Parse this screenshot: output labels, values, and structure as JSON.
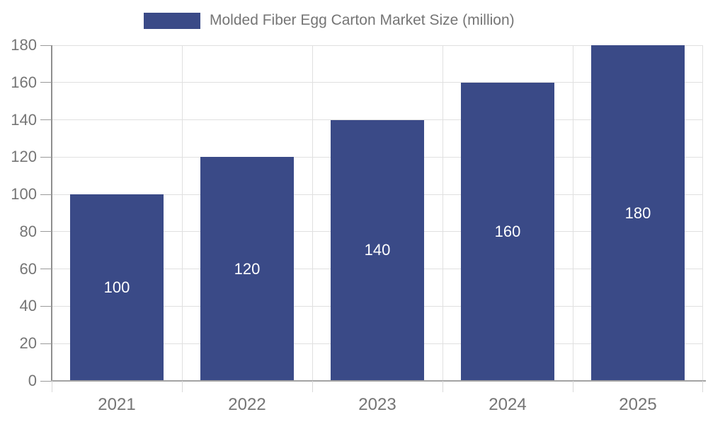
{
  "chart_data": {
    "type": "bar",
    "title": "",
    "series_name": "Molded Fiber Egg Carton Market Size (million)",
    "categories": [
      "2021",
      "2022",
      "2023",
      "2024",
      "2025"
    ],
    "values": [
      100,
      120,
      140,
      160,
      180
    ],
    "ylim": [
      0,
      180
    ],
    "ytick_step": 20,
    "grid": true,
    "legend_position": "top-center",
    "bar_labels": [
      "100",
      "120",
      "140",
      "160",
      "180"
    ],
    "bar_label_position": "inside-center",
    "colors": {
      "bar": "#3A4A87",
      "bar_label": "#FFFFFF",
      "axis_text": "#757575",
      "grid_line": "#E0E0E0",
      "axis_line": "#8F8F8F"
    }
  }
}
